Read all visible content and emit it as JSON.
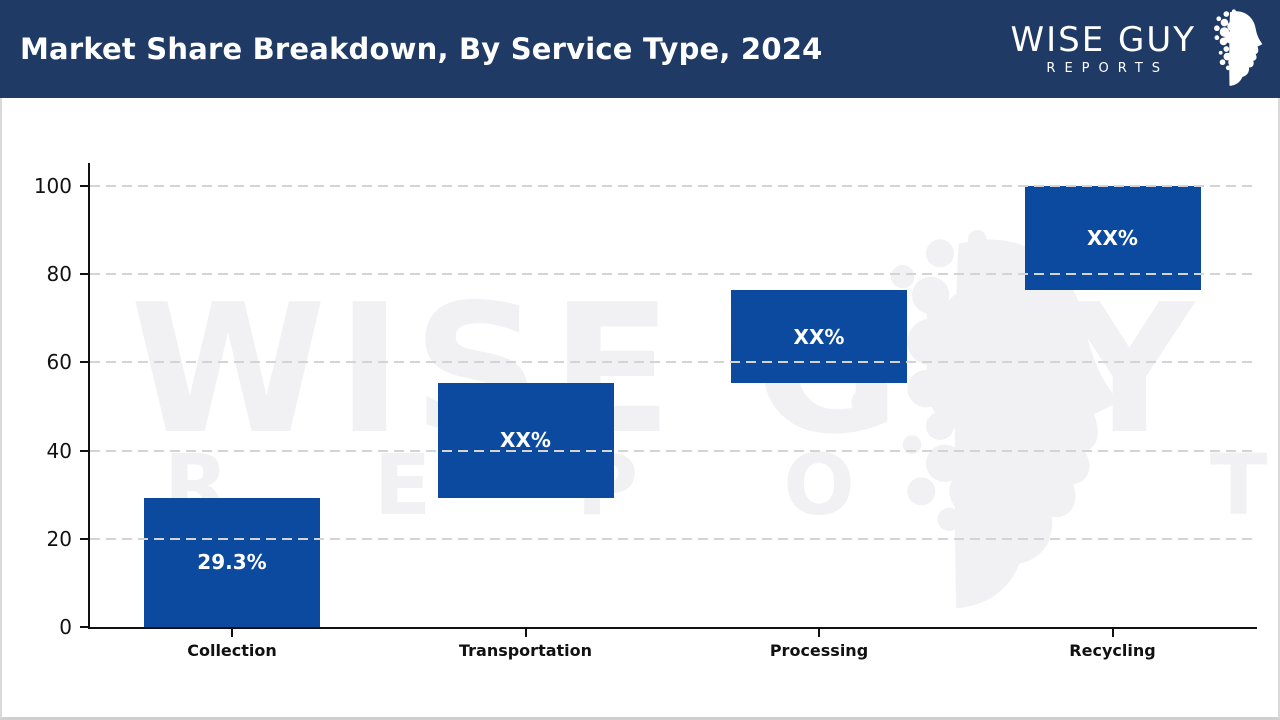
{
  "header": {
    "title": "Market Share Breakdown, By Service Type, 2024",
    "logo": {
      "line1": "WISE GUY",
      "line2": "REPORTS"
    }
  },
  "watermark": {
    "line1": "WISE GUY",
    "line2": "R E P O R T S"
  },
  "colors": {
    "header_bg": "#203a66",
    "bar": "#0b4a9e",
    "bar_label": "#ffffff",
    "gridline": "#d4d4d4",
    "axis": "#111111",
    "watermark": "#f1f1f4"
  },
  "chart_data": {
    "type": "bar",
    "subtype": "waterfall",
    "title": "Market Share Breakdown, By Service Type, 2024",
    "categories": [
      "Collection",
      "Transportation",
      "Processing",
      "Recycling"
    ],
    "segments": [
      {
        "category": "Collection",
        "start": 0,
        "end": 29.3,
        "label": "29.3%"
      },
      {
        "category": "Transportation",
        "start": 29.3,
        "end": 55.3,
        "label": "XX%"
      },
      {
        "category": "Processing",
        "start": 55.3,
        "end": 76.4,
        "label": "XX%"
      },
      {
        "category": "Recycling",
        "start": 76.4,
        "end": 100,
        "label": "XX%"
      }
    ],
    "xlabel": "",
    "ylabel": "",
    "ylim": [
      0,
      100
    ],
    "yticks": [
      0,
      20,
      40,
      60,
      80,
      100
    ],
    "grid": "horizontal dashed, drawn over bars",
    "legend": false
  }
}
